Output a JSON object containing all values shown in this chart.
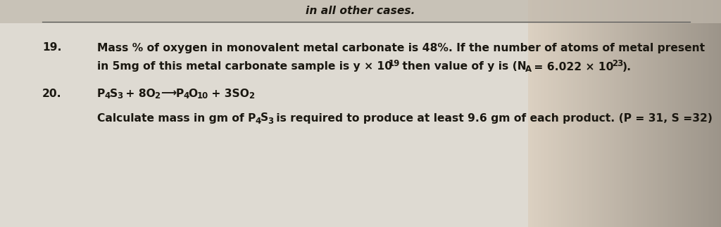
{
  "bg_color_left": "#e8e4dc",
  "bg_color_right": "#b8a898",
  "text_color": "#1a1710",
  "header_text": "in all other cases.",
  "q19_num": "19.",
  "q19_l1": "Mass % of oxygen in monovalent metal carbonate is 48%. If the number of atoms of metal present",
  "q19_l2a": "in 5mg of this metal carbonate sample is y × 10",
  "q19_l2b": "19",
  "q19_l2c": " then value of y is (N",
  "q19_l2d": "A",
  "q19_l2e": " = 6.022 × 10",
  "q19_l2f": "23",
  "q19_l2g": ").",
  "q20_num": "20.",
  "q20_p1": "P",
  "q20_s1": "4",
  "q20_p2": "S",
  "q20_s2": "3",
  "q20_p3": " + 8O",
  "q20_s3": "2",
  "q20_arr": "⟶",
  "q20_p4": "P",
  "q20_s4": "4",
  "q20_p5": "O",
  "q20_s5": "10",
  "q20_p6": " + 3SO",
  "q20_s6": "2",
  "calc_a": "Calculate mass in gm of P",
  "calc_s1": "4",
  "calc_b": "S",
  "calc_s2": "3",
  "calc_c": " is required to produce at least 9.6 gm of each product. (P = 31, S =32)",
  "font_size": 11.2,
  "font_size_sub": 8.5
}
